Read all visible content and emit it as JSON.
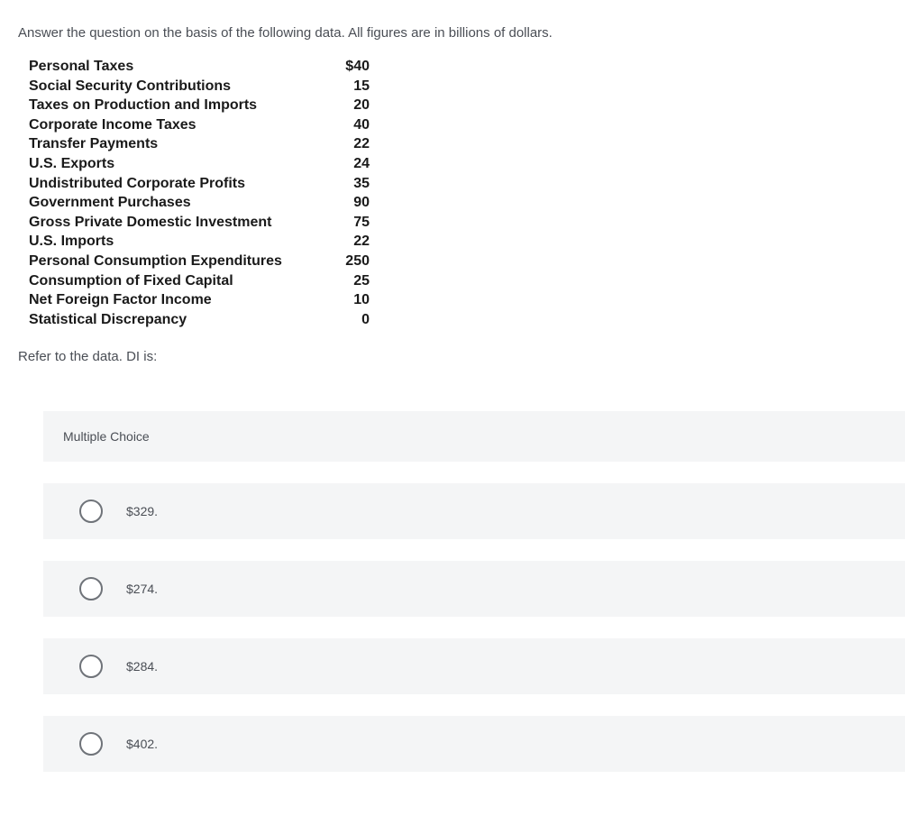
{
  "intro_text": "Answer the question on the basis of the following data. All figures are in billions of dollars.",
  "table": {
    "rows": [
      {
        "label": "Personal Taxes",
        "value": "$40"
      },
      {
        "label": "Social Security Contributions",
        "value": "15"
      },
      {
        "label": "Taxes on Production and Imports",
        "value": "20"
      },
      {
        "label": "Corporate Income Taxes",
        "value": "40"
      },
      {
        "label": "Transfer Payments",
        "value": "22"
      },
      {
        "label": "U.S. Exports",
        "value": "24"
      },
      {
        "label": "Undistributed Corporate Profits",
        "value": "35"
      },
      {
        "label": "Government Purchases",
        "value": "90"
      },
      {
        "label": "Gross Private Domestic Investment",
        "value": "75"
      },
      {
        "label": "U.S. Imports",
        "value": "22"
      },
      {
        "label": "Personal Consumption Expenditures",
        "value": "250"
      },
      {
        "label": "Consumption of Fixed Capital",
        "value": "25"
      },
      {
        "label": "Net Foreign Factor Income",
        "value": "10"
      },
      {
        "label": "Statistical Discrepancy",
        "value": "0"
      }
    ]
  },
  "prompt_text": "Refer to the data. DI is:",
  "mc_header": "Multiple Choice",
  "choices": [
    {
      "text": "$329."
    },
    {
      "text": "$274."
    },
    {
      "text": "$284."
    },
    {
      "text": "$402."
    }
  ],
  "colors": {
    "page_bg": "#ffffff",
    "text_primary": "#4a4e55",
    "text_bold": "#1a1a1a",
    "option_bg": "#f4f5f6",
    "radio_border": "#6f7379"
  }
}
